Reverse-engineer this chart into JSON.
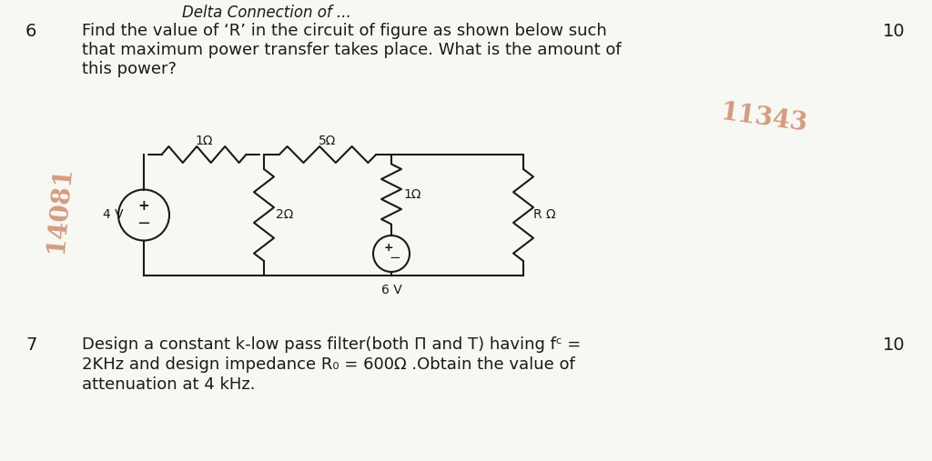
{
  "bg_color": "#f7f7f3",
  "q6_number": "6",
  "q6_marks": "10",
  "q6_text_line1": "Find the value of ‘R’ in the circuit of figure as shown below such",
  "q6_text_line2": "that maximum power transfer takes place. What is the amount of",
  "q6_text_line3": "this power?",
  "q7_number": "7",
  "q7_marks": "10",
  "q7_text_line1": "Design a constant k-low pass filter(both Π and T) having fᶜ =",
  "q7_text_line2": "2KHz and design impedance R₀ = 600Ω .Obtain the value of",
  "q7_text_line3": "attenuation at 4 kHz.",
  "top_partial_text": "Delta Connection of ...",
  "watermark1": "14081",
  "watermark2": "11343",
  "font_size_main": 13,
  "text_color": "#1a1a1a",
  "watermark_color": "#c97c5a",
  "circuit_color": "#1a1a1a",
  "circuit_lw": 1.5
}
